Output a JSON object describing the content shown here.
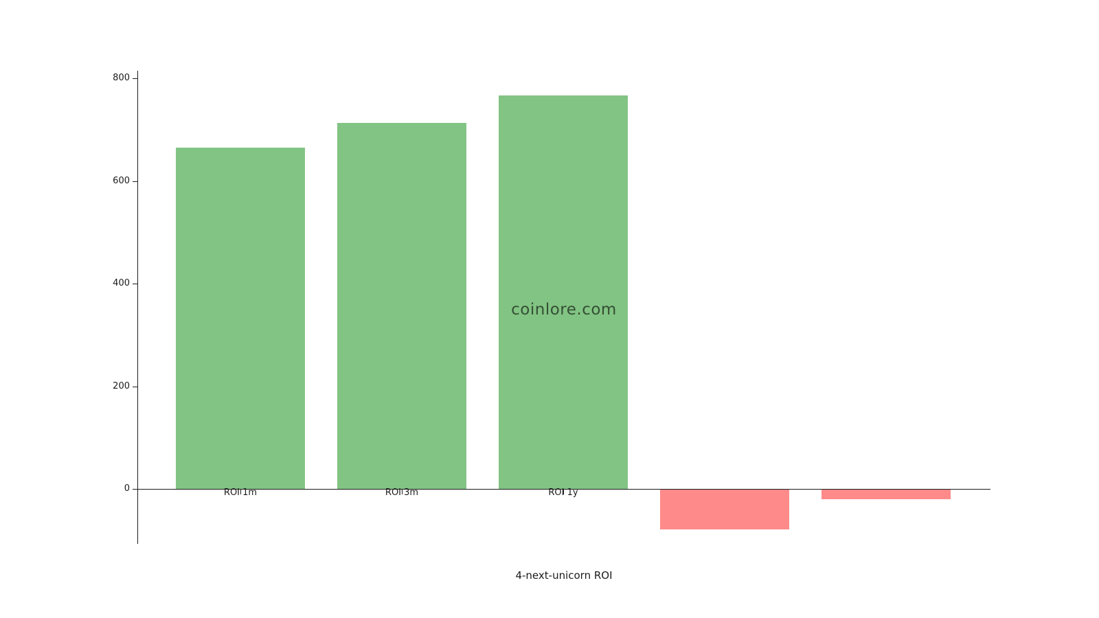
{
  "page": {
    "background_color": "#ffffff",
    "axis_color": "#1a1a1a",
    "text_color": "#1a1a1a"
  },
  "watermark": {
    "text": "coinlore.com"
  },
  "chart_data": {
    "type": "bar",
    "title": "4-next-unicorn ROI",
    "categories": [
      "ROI 1m",
      "ROI 3m",
      "ROI 1y",
      "",
      ""
    ],
    "values": [
      665,
      713,
      767,
      -77,
      -18
    ],
    "series": [
      {
        "name": "ROI",
        "values": [
          665,
          713,
          767,
          -77,
          -18
        ]
      }
    ],
    "bar_colors": [
      "#82c483",
      "#82c483",
      "#82c483",
      "#ff8a8a",
      "#ff8a8a"
    ],
    "positive_color": "#82c483",
    "negative_color": "#ff8a8a",
    "xlabel": "",
    "ylabel": "",
    "y_ticks": [
      0,
      200,
      400,
      600,
      800
    ],
    "ylim": [
      -107,
      815
    ],
    "grid": false,
    "legend_position": "none"
  }
}
